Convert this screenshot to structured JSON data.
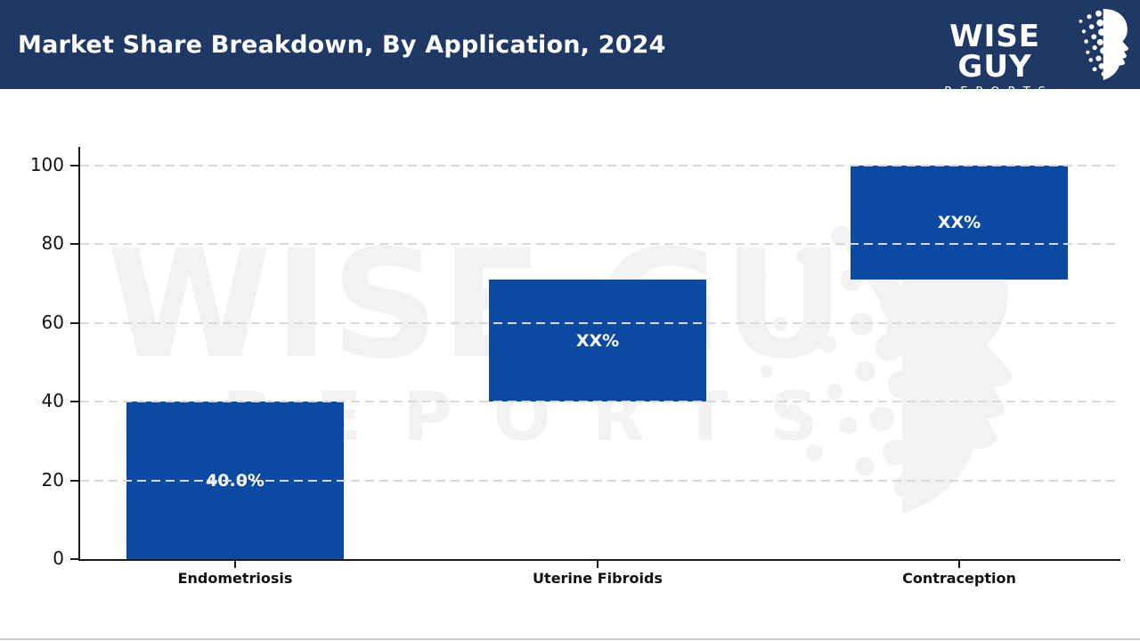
{
  "header": {
    "title": "Market Share Breakdown, By Application, 2024",
    "logo": {
      "line1": "WISE GUY",
      "line2": "REPORTS"
    }
  },
  "watermark": {
    "line1": "WISE GUY",
    "line2": "REPORTS"
  },
  "chart_data": {
    "type": "bar",
    "subtype": "waterfall-market-share",
    "title": "Market Share Breakdown, By Application, 2024",
    "categories": [
      "Endometriosis",
      "Uterine Fibroids",
      "Contraception"
    ],
    "segments": [
      {
        "category": "Endometriosis",
        "from": 0,
        "to": 40,
        "label": "40.0%"
      },
      {
        "category": "Uterine Fibroids",
        "from": 40,
        "to": 71,
        "label": "XX%"
      },
      {
        "category": "Contraception",
        "from": 71,
        "to": 100,
        "label": "XX%"
      }
    ],
    "ylim": [
      0,
      100
    ],
    "yticks": [
      0,
      20,
      40,
      60,
      80,
      100
    ],
    "xlabel": "",
    "ylabel": "",
    "grid": "horizontal-dashed",
    "legend": "none",
    "colors": {
      "bar": "#0B4AA0",
      "bar_label": "#FFFFFF",
      "header_bg": "#1F3864",
      "grid": "#D9D9D9",
      "axis": "#1A1A1A",
      "watermark": "#F2F2F4"
    }
  }
}
